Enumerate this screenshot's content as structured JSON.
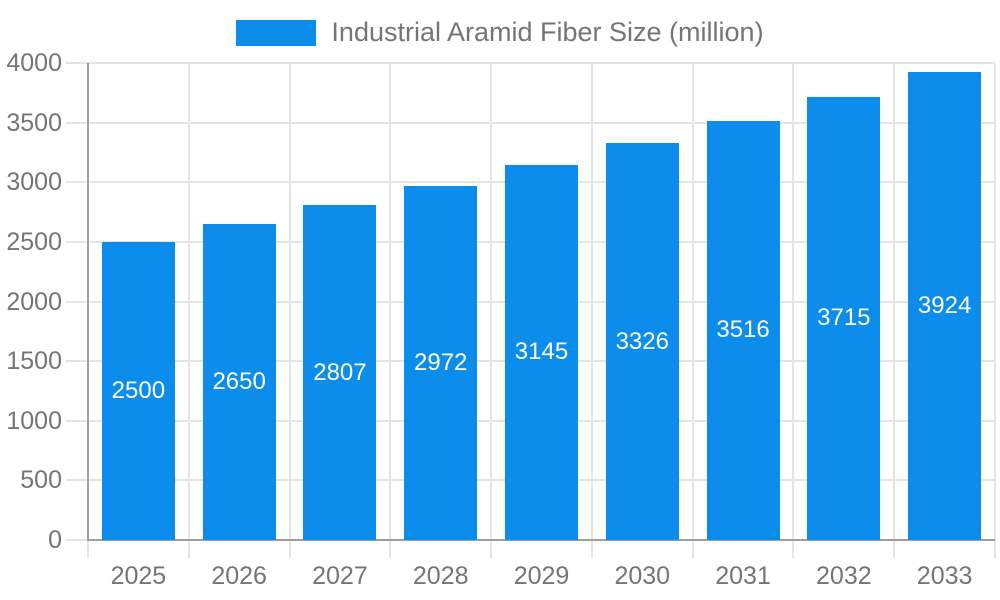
{
  "legend": {
    "label": "Industrial Aramid Fiber Size (million)"
  },
  "chart_data": {
    "type": "bar",
    "title": "Industrial Aramid Fiber Size (million)",
    "categories": [
      "2025",
      "2026",
      "2027",
      "2028",
      "2029",
      "2030",
      "2031",
      "2032",
      "2033"
    ],
    "values": [
      2500,
      2650,
      2807,
      2972,
      3145,
      3326,
      3516,
      3715,
      3924
    ],
    "bar_value_labels": [
      "2500",
      "2650",
      "2807",
      "2972",
      "3145",
      "3326",
      "3516",
      "3715",
      "3924"
    ],
    "xlabel": "",
    "ylabel": "",
    "ylim": [
      0,
      4000
    ],
    "yticks": [
      0,
      500,
      1000,
      1500,
      2000,
      2500,
      3000,
      3500,
      4000
    ],
    "grid": true,
    "legend_position": "top-center",
    "bar_color": "#0d8deb",
    "bar_label_color": "#ffffff",
    "grid_color": "#e4e4e4",
    "axis_color": "#9e9e9e",
    "tick_label_color": "#757575"
  }
}
